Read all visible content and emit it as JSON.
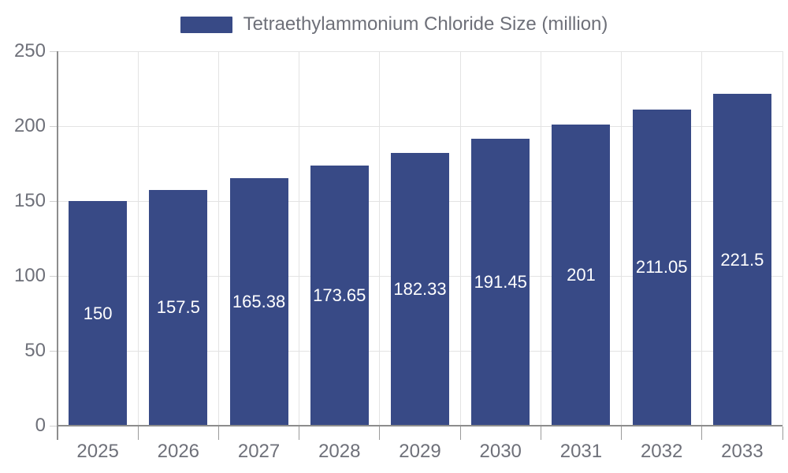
{
  "legend": {
    "label": "Tetraethylammonium Chloride Size (million)"
  },
  "chart_data": {
    "type": "bar",
    "title": "Tetraethylammonium Chloride Size (million)",
    "categories": [
      "2025",
      "2026",
      "2027",
      "2028",
      "2029",
      "2030",
      "2031",
      "2032",
      "2033"
    ],
    "series": [
      {
        "name": "Tetraethylammonium Chloride Size (million)",
        "values": [
          150,
          157.5,
          165.38,
          173.65,
          182.33,
          191.45,
          201,
          211.05,
          221.5
        ]
      }
    ],
    "value_labels": [
      "150",
      "157.5",
      "165.38",
      "173.65",
      "182.33",
      "191.45",
      "201",
      "211.05",
      "221.5"
    ],
    "xlabel": "",
    "ylabel": "",
    "ylim": [
      0,
      250
    ],
    "y_ticks": [
      0,
      50,
      100,
      150,
      200,
      250
    ],
    "grid": true,
    "legend_position": "top-center",
    "value_label_position": "inside-center",
    "colors": {
      "bar": "#384a86",
      "bar_label": "#ffffff",
      "axis_text": "#6e7079",
      "axis_line": "#8d8d8d",
      "grid_line": "#e3e3e3",
      "x_tick": "#9a9a9a",
      "y_tick": "#cfcfcf",
      "background": "#ffffff"
    }
  }
}
